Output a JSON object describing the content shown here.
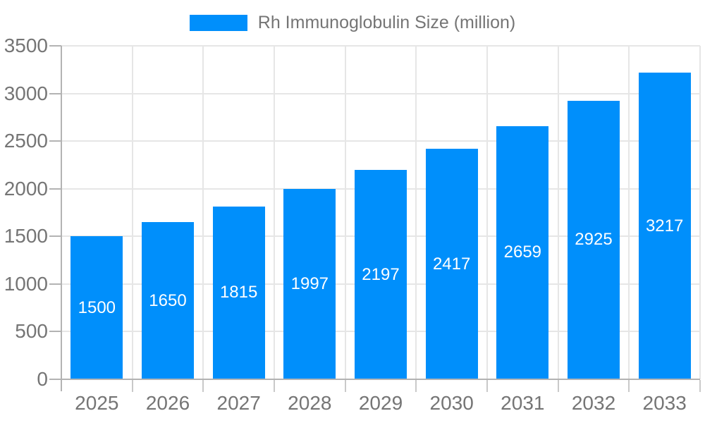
{
  "chart_data": {
    "type": "bar",
    "title": "Rh Immunoglobulin Size (million)",
    "categories": [
      "2025",
      "2026",
      "2027",
      "2028",
      "2029",
      "2030",
      "2031",
      "2032",
      "2033"
    ],
    "values": [
      1500,
      1650,
      1815,
      1997,
      2197,
      2417,
      2659,
      2925,
      3217
    ],
    "xlabel": "",
    "ylabel": "",
    "ylim": [
      0,
      3500
    ],
    "yticks": [
      0,
      500,
      1000,
      1500,
      2000,
      2500,
      3000,
      3500
    ],
    "grid": true,
    "legend_position": "top",
    "bar_color": "#008ffb",
    "bar_label_color": "#ffffff",
    "axis_text_color": "#757575",
    "grid_color": "#e6e6e6",
    "axis_line_color": "#b3b3b3"
  }
}
